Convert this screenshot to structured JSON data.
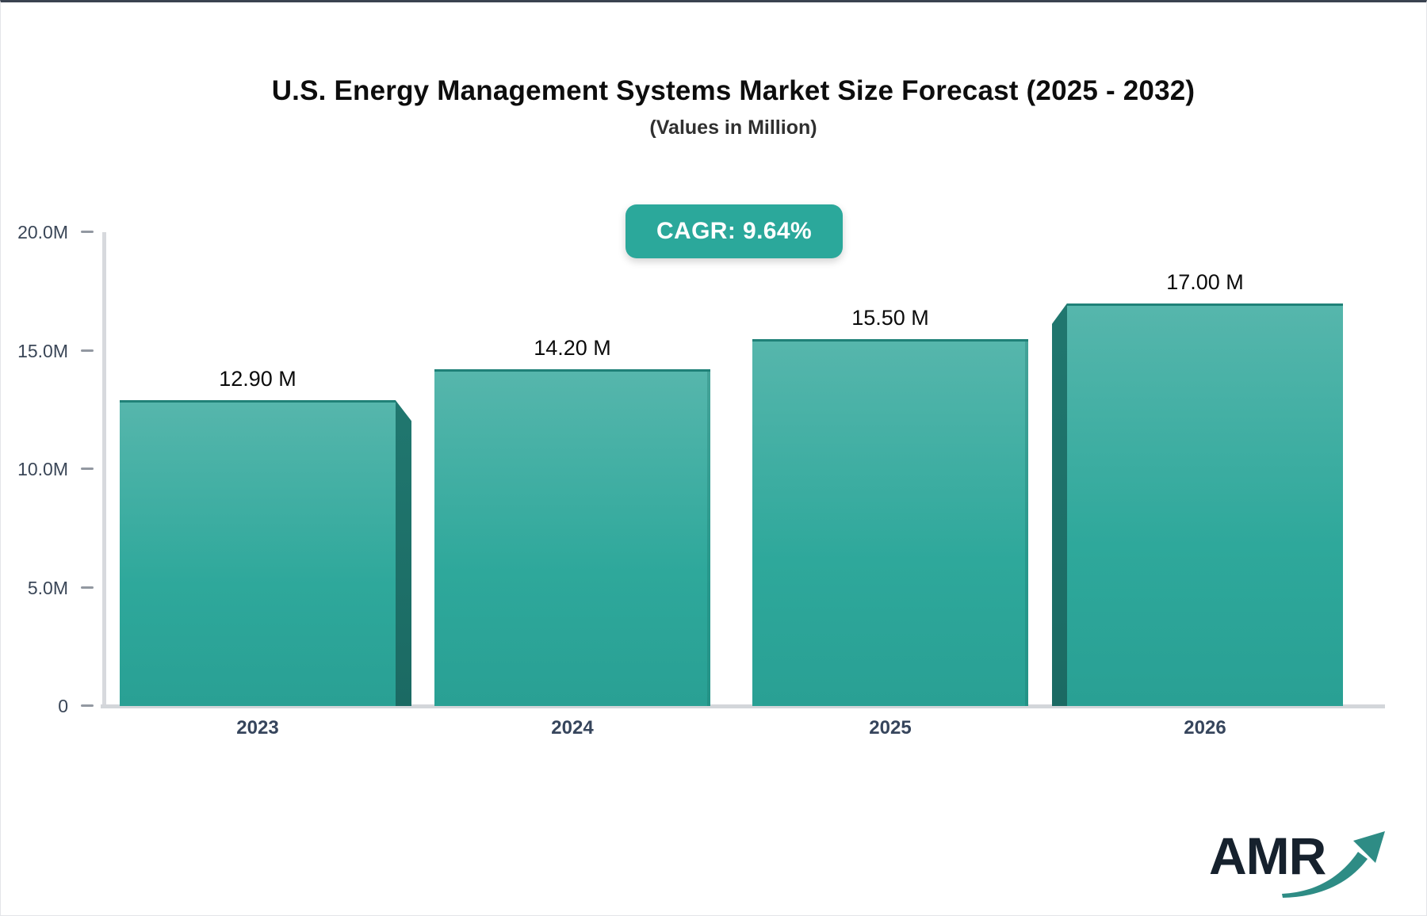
{
  "header": {
    "title": "U.S. Energy Management Systems Market Size Forecast (2025 - 2032)",
    "subtitle": "(Values in Million)"
  },
  "badge": {
    "label": "CAGR: 9.64%",
    "bg_color": "#2ba89b",
    "text_color": "#ffffff"
  },
  "chart_data": {
    "type": "bar",
    "title": "U.S. Energy Management Systems Market Size Forecast (2025 - 2032)",
    "subtitle": "(Values in Million)",
    "annotation": "CAGR: 9.64%",
    "categories": [
      "2023",
      "2024",
      "2025",
      "2026"
    ],
    "values": [
      12.9,
      14.2,
      15.5,
      17.0
    ],
    "value_labels": [
      "12.90 M",
      "14.20 M",
      "15.50 M",
      "17.00 M"
    ],
    "xlabel": "",
    "ylabel": "",
    "ylim": [
      0,
      20
    ],
    "ytick_labels": [
      "20.0M",
      "15.0M",
      "10.0M",
      "5.0M",
      "0"
    ],
    "ytick_values": [
      20,
      15,
      10,
      5,
      0
    ],
    "grid": false,
    "legend_position": "none",
    "bar_color_top": "#56b6ac",
    "bar_color_bottom": "#29a094",
    "bar_edge_color": "#208178",
    "bar_bevel_color": "#1d6e67"
  },
  "logo": {
    "text": "AMR",
    "color": "#16212d",
    "arrow_color": "#2e8c85"
  }
}
